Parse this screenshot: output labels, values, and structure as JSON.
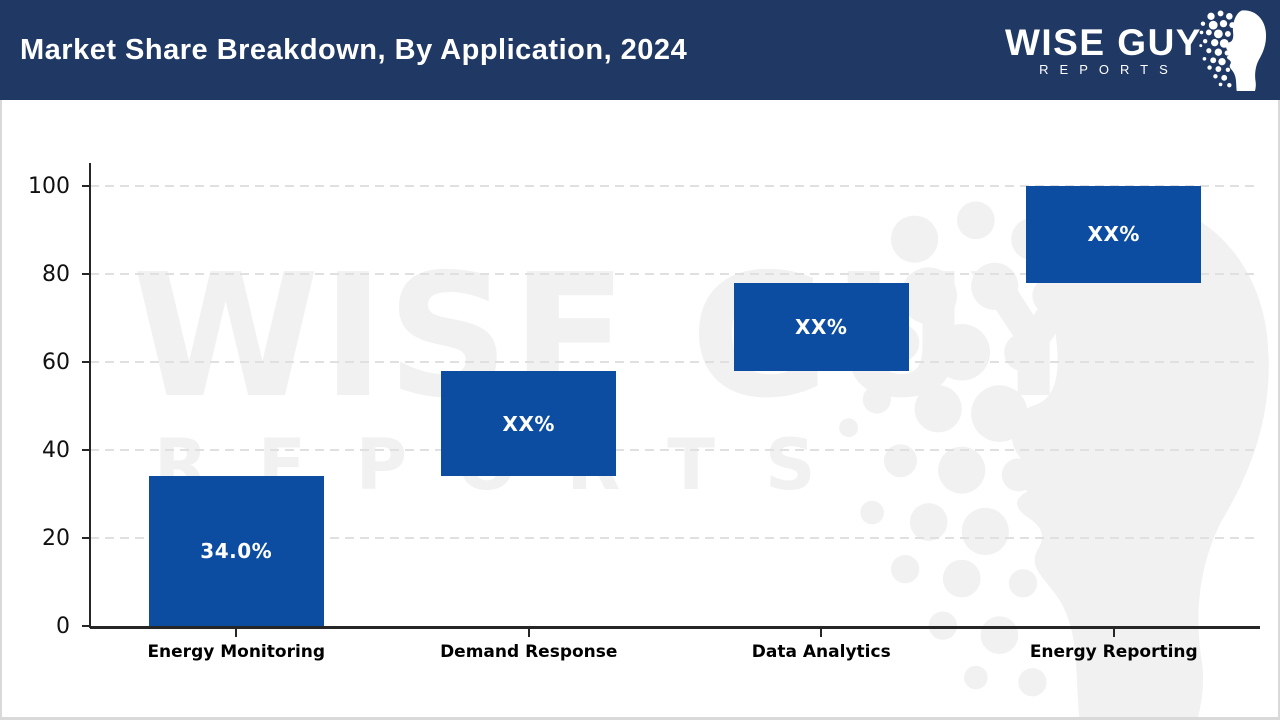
{
  "header": {
    "title": "Market Share Breakdown, By Application, 2024",
    "logo": {
      "line1": "WISE GUY",
      "line2": "REPORTS"
    }
  },
  "watermark": {
    "line1": "WISE GUY",
    "line2": "REPORTS"
  },
  "colors": {
    "header_bg": "#1f3864",
    "bar": "#0c4da2",
    "bar_label": "#ffffff",
    "grid": "#e0e0e0",
    "axis": "#262626",
    "watermark": "#f1f1f2",
    "border": "#d9d9d9"
  },
  "chart_data": {
    "type": "bar",
    "subtype": "waterfall",
    "title": "Market Share Breakdown, By Application, 2024",
    "categories": [
      "Energy Monitoring",
      "Demand Response",
      "Data Analytics",
      "Energy Reporting"
    ],
    "series": [
      {
        "name": "Market Share (%)",
        "segments": [
          {
            "category": "Energy Monitoring",
            "start": 0,
            "end": 34,
            "label": "34.0%"
          },
          {
            "category": "Demand Response",
            "start": 34,
            "end": 58,
            "label": "XX%"
          },
          {
            "category": "Data Analytics",
            "start": 58,
            "end": 78,
            "label": "XX%"
          },
          {
            "category": "Energy Reporting",
            "start": 78,
            "end": 100,
            "label": "XX%"
          }
        ]
      }
    ],
    "xlabel": "",
    "ylabel": "",
    "ylim": [
      0,
      105
    ],
    "yticks": [
      0,
      20,
      40,
      60,
      80,
      100
    ],
    "grid": "horizontal-dashed",
    "legend": "none"
  }
}
